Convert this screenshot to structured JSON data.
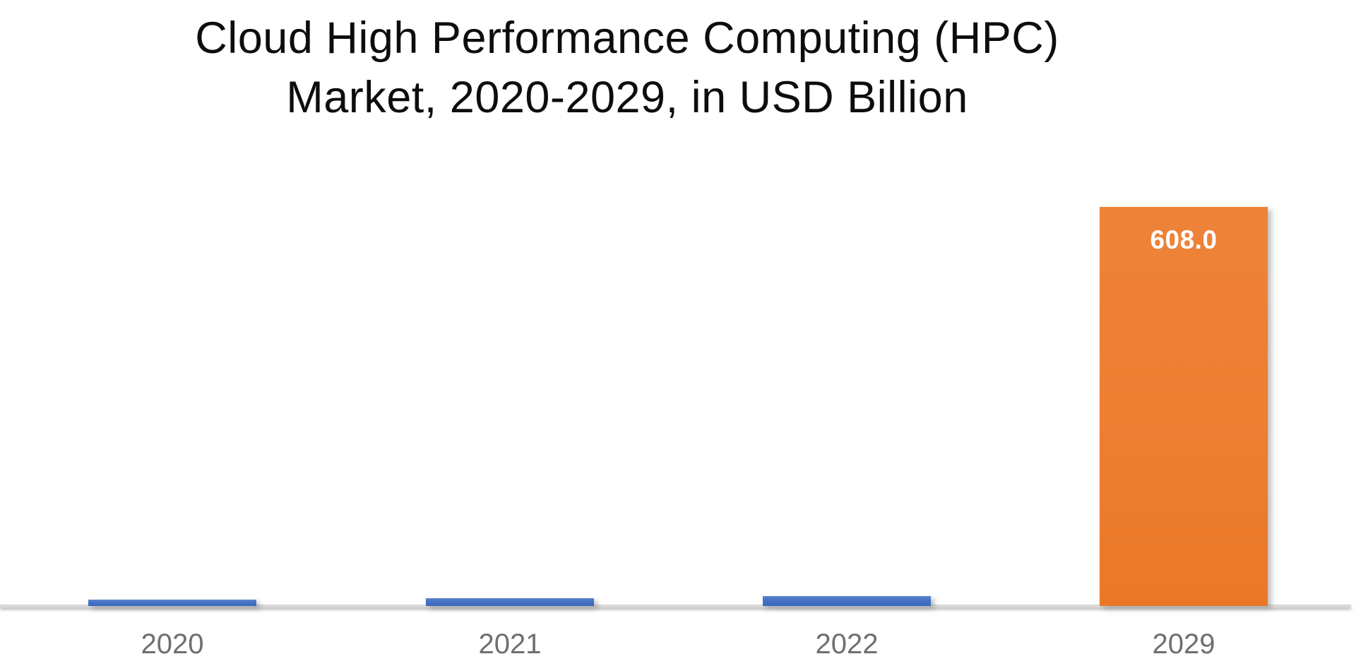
{
  "title": {
    "lines": [
      "Cloud High Performance Computing (HPC)",
      "Market, 2020-2029, in USD Billion"
    ],
    "full": "Cloud High Performance Computing (HPC) Market, 2020-2029, in USD Billion"
  },
  "chart_data": {
    "type": "bar",
    "title": "Cloud High Performance Computing (HPC) Market, 2020-2029, in USD Billion",
    "categories": [
      "2020",
      "2021",
      "2022",
      "2029"
    ],
    "values": [
      10,
      12,
      15,
      608.0
    ],
    "data_labels": [
      "",
      "",
      "",
      "608.0"
    ],
    "unit": "USD Billion",
    "xlabel": "",
    "ylabel": "",
    "ylim": [
      0,
      650
    ],
    "grid": false,
    "legend": false,
    "y_axis_visible": false,
    "bar_colors": [
      "#4472C4",
      "#4472C4",
      "#4472C4",
      "#ED7D31"
    ],
    "colors": {
      "blue_bar": "#4472C4",
      "orange_bar": "#ED7D31",
      "axis_line": "#D9D9D9",
      "tick_label": "#6F6F6F",
      "data_label": "#FFFFFF",
      "title_text": "#0D0D0D",
      "background": "#FFFFFF"
    }
  }
}
